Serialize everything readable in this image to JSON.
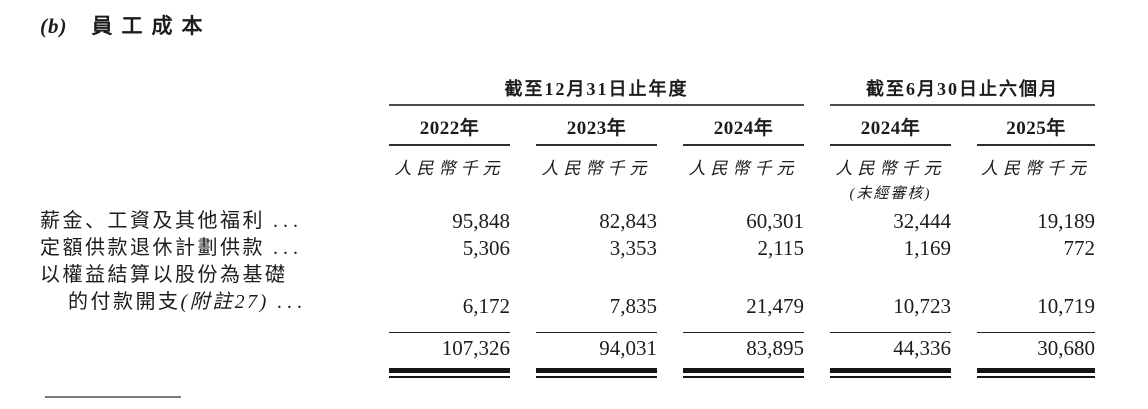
{
  "section": {
    "marker": "(b)",
    "title": "員工成本"
  },
  "table": {
    "column_groups": [
      {
        "label": "截至12月31日止年度"
      },
      {
        "label": "截至6月30日止六個月"
      }
    ],
    "columns": [
      {
        "year": "2022年",
        "unit": "人民幣千元",
        "note": ""
      },
      {
        "year": "2023年",
        "unit": "人民幣千元",
        "note": ""
      },
      {
        "year": "2024年",
        "unit": "人民幣千元",
        "note": ""
      },
      {
        "year": "2024年",
        "unit": "人民幣千元",
        "note": "(未經審核)"
      },
      {
        "year": "2025年",
        "unit": "人民幣千元",
        "note": ""
      }
    ],
    "rows": [
      {
        "label": "薪金、工資及其他福利",
        "leader": "...",
        "values": [
          "95,848",
          "82,843",
          "60,301",
          "32,444",
          "19,189"
        ]
      },
      {
        "label": "定額供款退休計劃供款",
        "leader": "...",
        "values": [
          "5,306",
          "3,353",
          "2,115",
          "1,169",
          "772"
        ]
      },
      {
        "label_line1": "以權益結算以股份為基礎",
        "label_line2": "的付款開支",
        "label_note": "(附註27)",
        "leader": "...",
        "values": [
          "6,172",
          "7,835",
          "21,479",
          "10,723",
          "10,719"
        ]
      }
    ],
    "total": {
      "values": [
        "107,326",
        "94,031",
        "83,895",
        "44,336",
        "30,680"
      ]
    }
  },
  "colors": {
    "text": "#1c1c1c",
    "group_rule": "#4d4d4d",
    "column_rule": "#2e2e2e",
    "total_rule": "#161616",
    "footnote_rule": "#7a7a7a"
  }
}
